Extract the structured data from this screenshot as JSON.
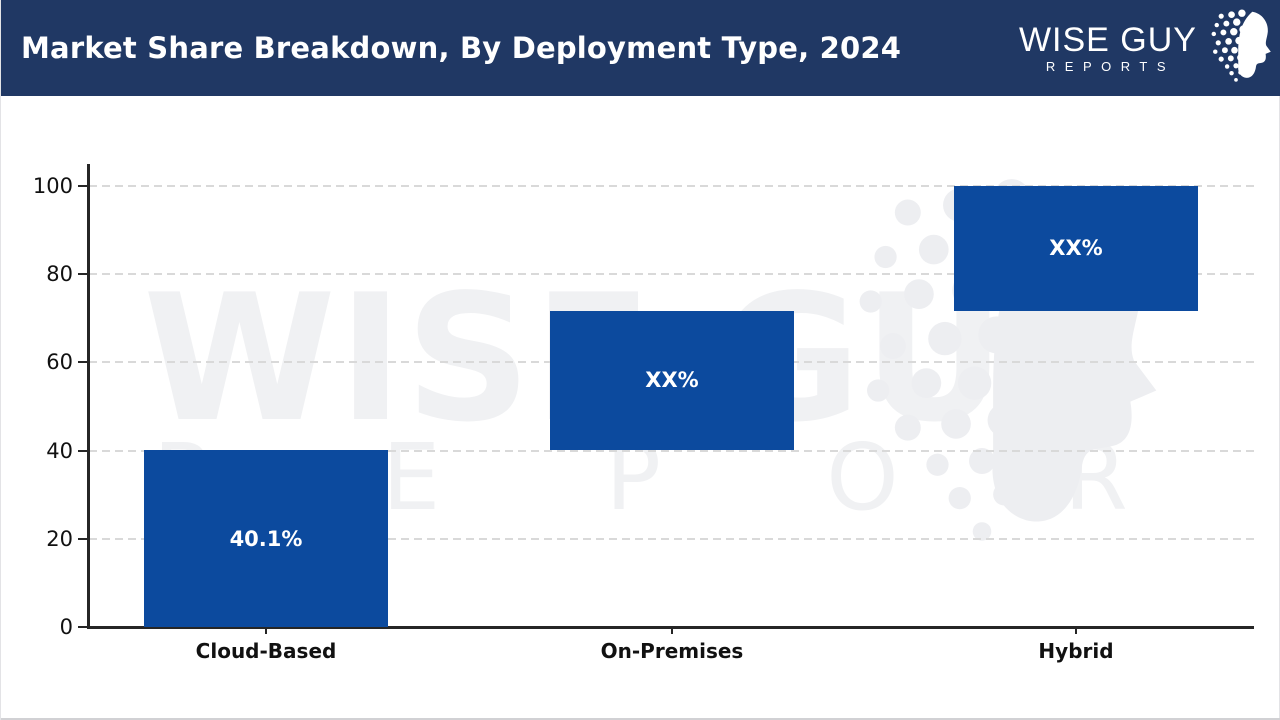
{
  "header": {
    "title": "Market Share Breakdown, By Deployment Type, 2024",
    "logo": {
      "line1": "WISE GUY",
      "line2": "REPORTS"
    }
  },
  "watermark": {
    "line1": "WISE GUY",
    "line2": "R E P O R T S"
  },
  "chart_data": {
    "type": "bar",
    "variant": "floating-waterfall",
    "title": "Market Share Breakdown, By Deployment Type, 2024",
    "categories": [
      "Cloud-Based",
      "On-Premises",
      "Hybrid"
    ],
    "segments": [
      {
        "category": "Cloud-Based",
        "start": 0,
        "end": 40.1,
        "label": "40.1%"
      },
      {
        "category": "On-Premises",
        "start": 40.1,
        "end": 71.7,
        "label": "XX%"
      },
      {
        "category": "Hybrid",
        "start": 71.7,
        "end": 100,
        "label": "XX%"
      }
    ],
    "xlabel": "",
    "ylabel": "",
    "ylim": [
      0,
      105
    ],
    "yticks": [
      0,
      20,
      40,
      60,
      80,
      100
    ],
    "grid": "horizontal-dashed",
    "legend": "none"
  },
  "colors": {
    "header_bg": "#203864",
    "bar": "#0c4a9e",
    "bar_label": "#ffffff",
    "axis": "#262626",
    "grid": "#d9d9d9",
    "watermark": "#f0f1f3",
    "watermark_face": "#edeef1",
    "title_text": "#ffffff",
    "tick_text": "#111111"
  }
}
